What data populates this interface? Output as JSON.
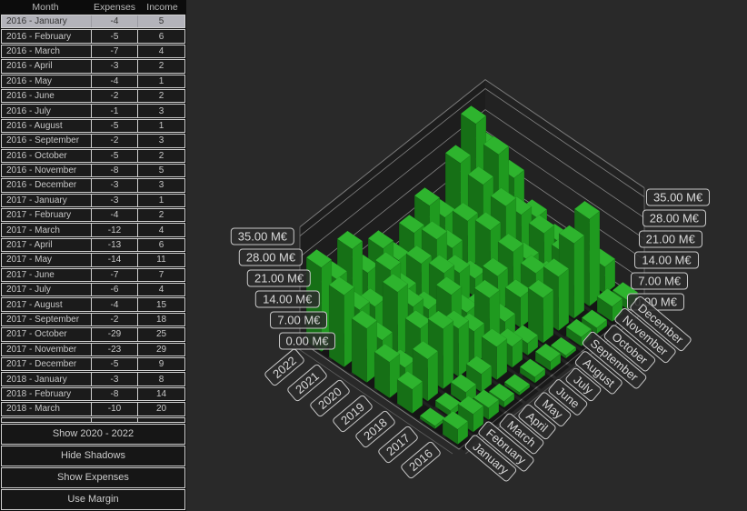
{
  "table": {
    "columns": [
      "Month",
      "Expenses",
      "Income"
    ],
    "selected_row_index": 0,
    "rows": [
      {
        "month": "2016 - January",
        "expenses": "-4",
        "income": "5"
      },
      {
        "month": "2016 - February",
        "expenses": "-5",
        "income": "6"
      },
      {
        "month": "2016 - March",
        "expenses": "-7",
        "income": "4"
      },
      {
        "month": "2016 - April",
        "expenses": "-3",
        "income": "2"
      },
      {
        "month": "2016 - May",
        "expenses": "-4",
        "income": "1"
      },
      {
        "month": "2016 - June",
        "expenses": "-2",
        "income": "2"
      },
      {
        "month": "2016 - July",
        "expenses": "-1",
        "income": "3"
      },
      {
        "month": "2016 - August",
        "expenses": "-5",
        "income": "1"
      },
      {
        "month": "2016 - September",
        "expenses": "-2",
        "income": "3"
      },
      {
        "month": "2016 - October",
        "expenses": "-5",
        "income": "2"
      },
      {
        "month": "2016 - November",
        "expenses": "-8",
        "income": "5"
      },
      {
        "month": "2016 - December",
        "expenses": "-3",
        "income": "3"
      },
      {
        "month": "2017 - January",
        "expenses": "-3",
        "income": "1"
      },
      {
        "month": "2017 - February",
        "expenses": "-4",
        "income": "2"
      },
      {
        "month": "2017 - March",
        "expenses": "-12",
        "income": "4"
      },
      {
        "month": "2017 - April",
        "expenses": "-13",
        "income": "6"
      },
      {
        "month": "2017 - May",
        "expenses": "-14",
        "income": "11"
      },
      {
        "month": "2017 - June",
        "expenses": "-7",
        "income": "7"
      },
      {
        "month": "2017 - July",
        "expenses": "-6",
        "income": "4"
      },
      {
        "month": "2017 - August",
        "expenses": "-4",
        "income": "15"
      },
      {
        "month": "2017 - September",
        "expenses": "-2",
        "income": "18"
      },
      {
        "month": "2017 - October",
        "expenses": "-29",
        "income": "25"
      },
      {
        "month": "2017 - November",
        "expenses": "-23",
        "income": "29"
      },
      {
        "month": "2017 - December",
        "expenses": "-5",
        "income": "9"
      },
      {
        "month": "2018 - January",
        "expenses": "-3",
        "income": "8"
      },
      {
        "month": "2018 - February",
        "expenses": "-8",
        "income": "14"
      },
      {
        "month": "2018 - March",
        "expenses": "-10",
        "income": "20"
      }
    ]
  },
  "controls": {
    "buttons": [
      {
        "label": "Show 2020 - 2022"
      },
      {
        "label": "Hide Shadows"
      },
      {
        "label": "Show Expenses"
      },
      {
        "label": "Use Margin"
      }
    ]
  },
  "chart_data": {
    "type": "bar",
    "projection": "3d",
    "unit": "M€",
    "title": "",
    "value_ticks": [
      "35.00 M€",
      "28.00 M€",
      "21.00 M€",
      "14.00 M€",
      "7.00 M€",
      "0.00 M€"
    ],
    "tick_values": [
      35,
      28,
      21,
      14,
      7,
      0
    ],
    "ylim": [
      0,
      38
    ],
    "x_axis_years": [
      "2016",
      "2017",
      "2018",
      "2019",
      "2020",
      "2021",
      "2022"
    ],
    "z_axis_months": [
      "January",
      "February",
      "March",
      "April",
      "May",
      "June",
      "July",
      "August",
      "September",
      "October",
      "November",
      "December"
    ],
    "series": [
      {
        "name": "2016",
        "values": [
          5,
          6,
          4,
          2,
          1,
          2,
          3,
          1,
          3,
          2,
          5,
          3
        ]
      },
      {
        "name": "2017",
        "values": [
          1,
          2,
          4,
          6,
          11,
          7,
          4,
          15,
          18,
          25,
          29,
          9
        ]
      },
      {
        "name": "2018",
        "values": [
          8,
          14,
          20,
          16,
          11,
          18,
          6,
          10,
          14,
          8,
          12,
          6
        ]
      },
      {
        "name": "2019",
        "values": [
          12,
          6,
          15,
          9,
          18,
          8,
          5,
          12,
          16,
          9,
          14,
          7
        ]
      },
      {
        "name": "2020",
        "values": [
          18,
          10,
          22,
          13,
          8,
          16,
          12,
          6,
          18,
          22,
          15,
          10
        ]
      },
      {
        "name": "2021",
        "values": [
          24,
          15,
          12,
          20,
          9,
          14,
          18,
          11,
          16,
          24,
          30,
          18
        ]
      },
      {
        "name": "2022",
        "values": [
          28,
          20,
          26,
          14,
          18,
          10,
          15,
          20,
          12,
          26,
          35,
          22
        ]
      }
    ],
    "legend": "none",
    "grid": true,
    "colors": {
      "bar_top": "#2eb42e",
      "bar_left": "#167016",
      "bar_right": "#1f9a1f",
      "wall_left": "#1d1d1d",
      "wall_right": "#222222",
      "floor": "#212121",
      "grid_line": "#9b9b9b",
      "edge_line": "#858585",
      "background": "#292929",
      "label_border": "#c8c8c8",
      "label_text": "#d9d9d9"
    }
  }
}
